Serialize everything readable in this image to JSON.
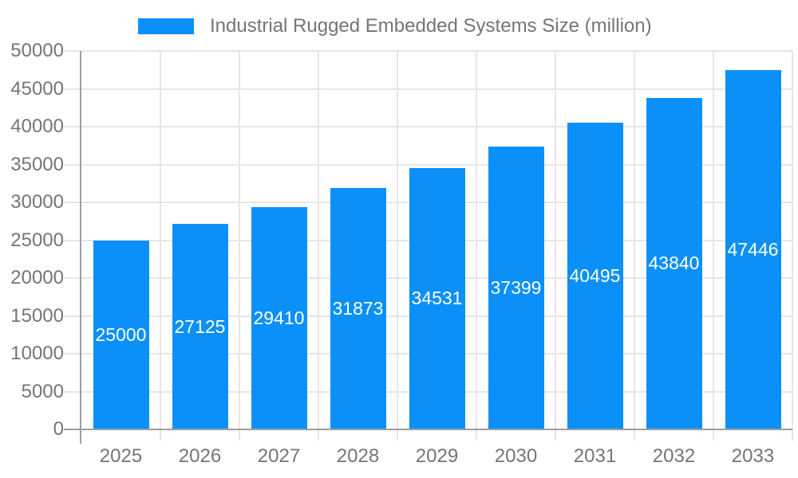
{
  "chart_data": {
    "type": "bar",
    "title": "Industrial Rugged Embedded Systems Size (million)",
    "legend": [
      "Industrial Rugged Embedded Systems Size (million)"
    ],
    "legend_position": "top",
    "categories": [
      "2025",
      "2026",
      "2027",
      "2028",
      "2029",
      "2030",
      "2031",
      "2032",
      "2033"
    ],
    "series": [
      {
        "name": "Industrial Rugged Embedded Systems Size (million)",
        "values": [
          25000,
          27125,
          29410,
          31873,
          34531,
          37399,
          40495,
          43840,
          47446
        ]
      }
    ],
    "xlabel": "",
    "ylabel": "",
    "ylim": [
      0,
      50000
    ],
    "ytick_step": 5000,
    "yticks": [
      0,
      5000,
      10000,
      15000,
      20000,
      25000,
      30000,
      35000,
      40000,
      45000,
      50000
    ],
    "grid": true,
    "value_labels": "inside-center",
    "colors": {
      "bar": "#0a90f8",
      "value_label": "#ffffff",
      "axis_text": "#757575",
      "gridline": "#e6e6e6",
      "axis_line": "#9e9e9e"
    }
  }
}
